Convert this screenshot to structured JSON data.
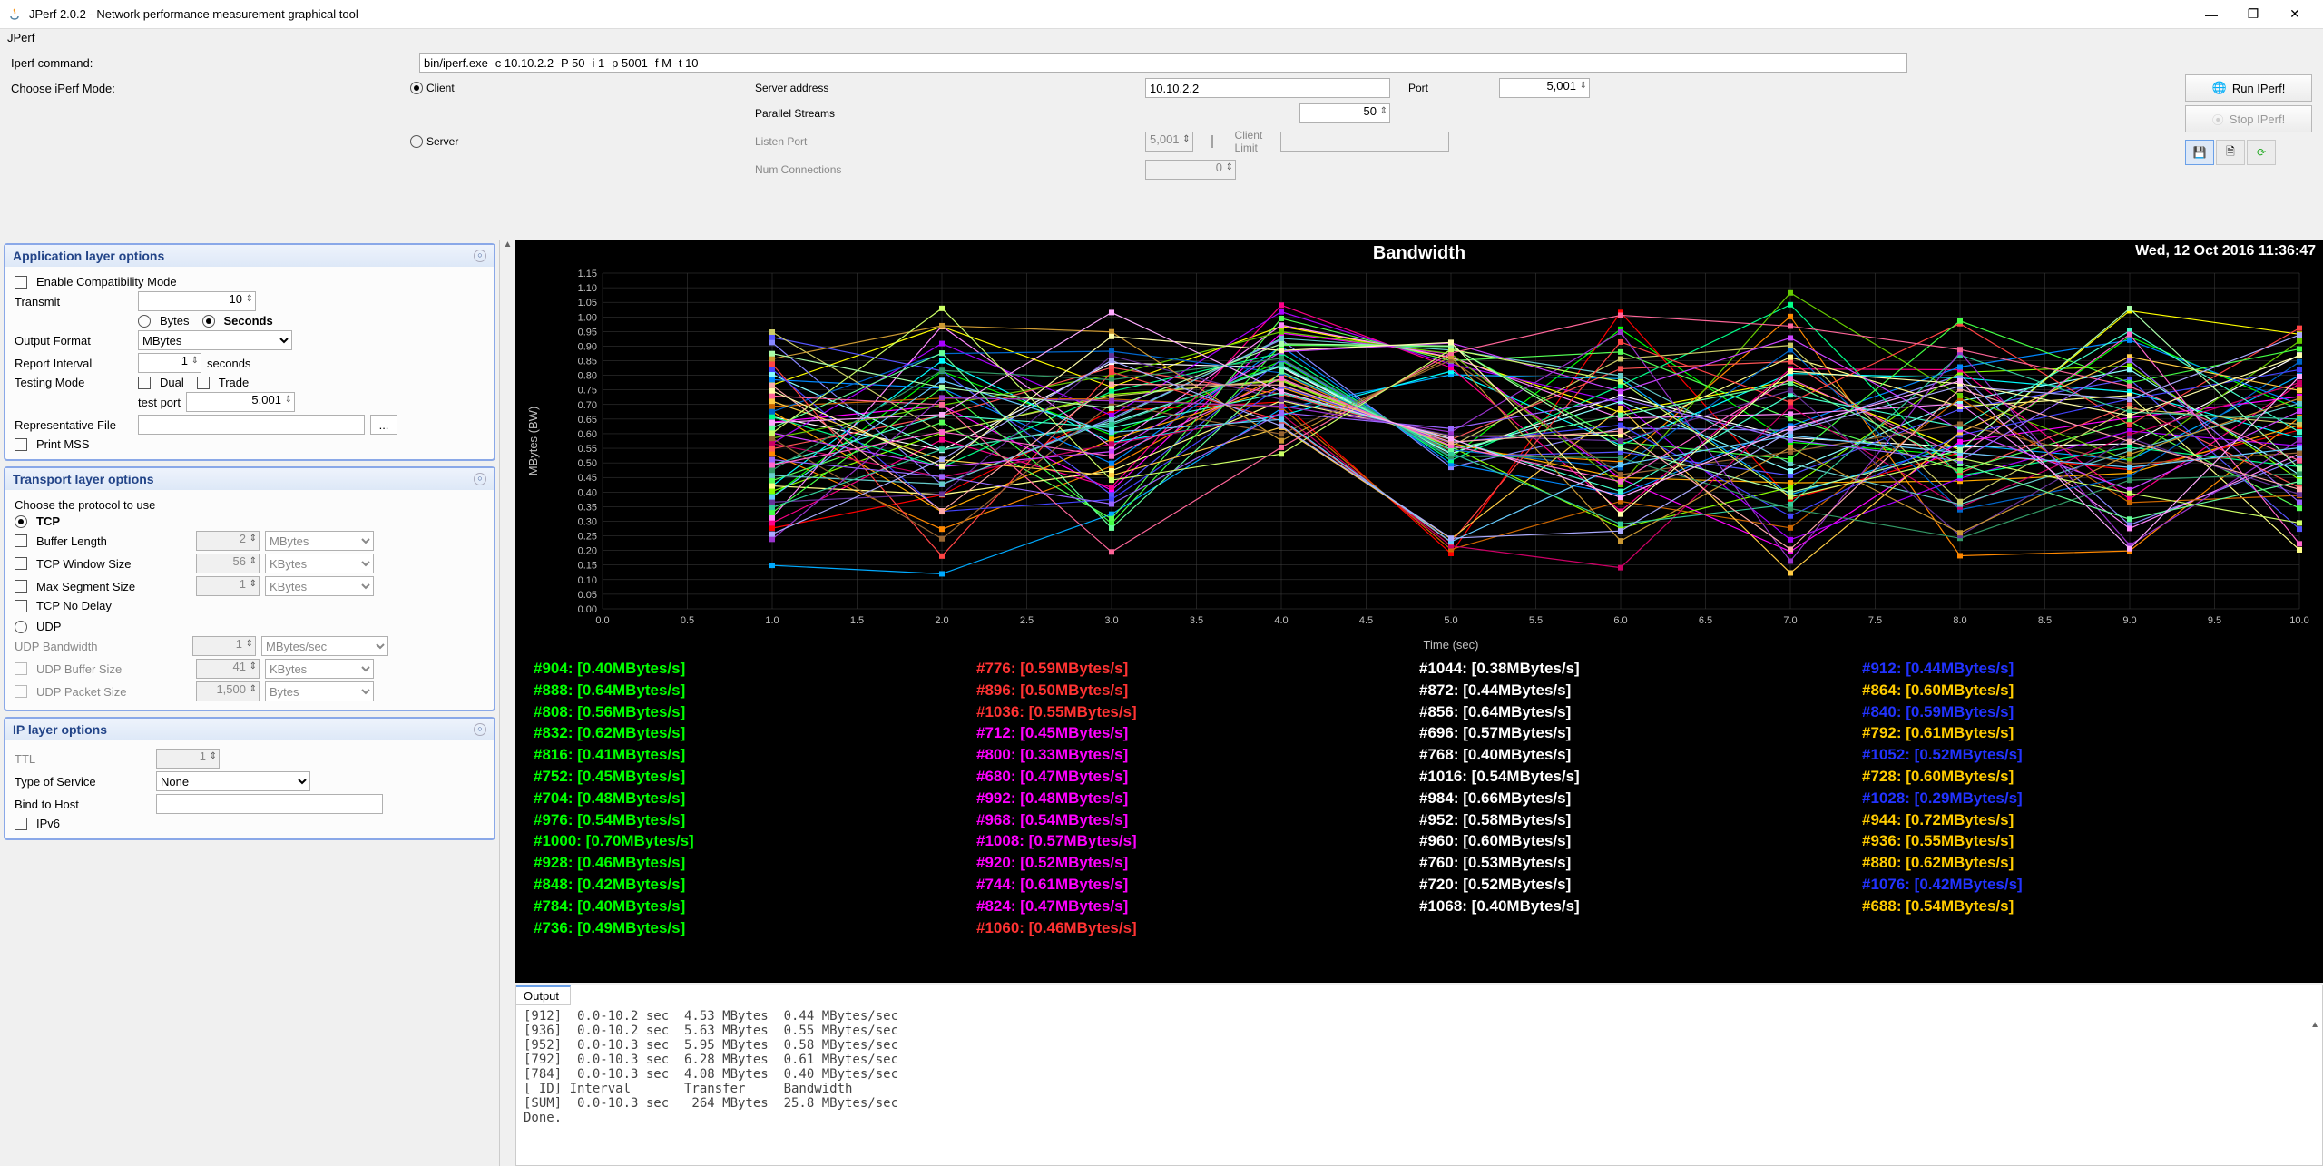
{
  "window": {
    "title": "JPerf 2.0.2 - Network performance measurement graphical tool",
    "menu_jperf": "JPerf"
  },
  "topform": {
    "iperf_cmd_label": "Iperf command:",
    "iperf_cmd_value": "bin/iperf.exe -c 10.10.2.2 -P 50 -i 1 -p 5001 -f M -t 10",
    "mode_label": "Choose iPerf Mode:",
    "client_label": "Client",
    "server_label": "Server",
    "server_addr_label": "Server address",
    "server_addr_value": "10.10.2.2",
    "port_label": "Port",
    "port_value": "5,001",
    "parallel_label": "Parallel Streams",
    "parallel_value": "50",
    "listen_port_label": "Listen Port",
    "listen_port_value": "5,001",
    "client_limit_label": "Client Limit",
    "numconn_label": "Num Connections",
    "numconn_value": "0"
  },
  "buttons": {
    "run": "Run IPerf!",
    "stop": "Stop IPerf!"
  },
  "panels": {
    "app": {
      "title": "Application layer options",
      "compat": "Enable Compatibility Mode",
      "transmit": "Transmit",
      "transmit_val": "10",
      "bytes": "Bytes",
      "seconds": "Seconds",
      "outfmt": "Output Format",
      "outfmt_val": "MBytes",
      "repint": "Report Interval",
      "repint_val": "1",
      "repint_unit": "seconds",
      "testmode": "Testing Mode",
      "dual": "Dual",
      "trade": "Trade",
      "testport": "test port",
      "testport_val": "5,001",
      "repfile": "Representative File",
      "browse": "...",
      "printmss": "Print MSS"
    },
    "transport": {
      "title": "Transport layer options",
      "choose": "Choose the protocol to use",
      "tcp": "TCP",
      "buflen": "Buffer Length",
      "buflen_val": "2",
      "buflen_unit": "MBytes",
      "winsize": "TCP Window Size",
      "winsize_val": "56",
      "winsize_unit": "KBytes",
      "maxseg": "Max Segment Size",
      "maxseg_val": "1",
      "maxseg_unit": "KBytes",
      "nodelay": "TCP No Delay",
      "udp": "UDP",
      "udpbw": "UDP Bandwidth",
      "udpbw_val": "1",
      "udpbw_unit": "MBytes/sec",
      "udpbuf": "UDP Buffer Size",
      "udpbuf_val": "41",
      "udpbuf_unit": "KBytes",
      "udppkt": "UDP Packet Size",
      "udppkt_val": "1,500",
      "udppkt_unit": "Bytes"
    },
    "ip": {
      "title": "IP layer options",
      "ttl": "TTL",
      "ttl_val": "1",
      "tos": "Type of Service",
      "tos_val": "None",
      "bind": "Bind to Host",
      "ipv6": "IPv6"
    }
  },
  "chart": {
    "title": "Bandwidth",
    "timestamp": "Wed, 12 Oct 2016 11:36:47",
    "ylabel": "MBytes (BW)",
    "xlabel": "Time (sec)",
    "yticks": [
      "0.00",
      "0.05",
      "0.10",
      "0.15",
      "0.20",
      "0.25",
      "0.30",
      "0.35",
      "0.40",
      "0.45",
      "0.50",
      "0.55",
      "0.60",
      "0.65",
      "0.70",
      "0.75",
      "0.80",
      "0.85",
      "0.90",
      "0.95",
      "1.00",
      "1.05",
      "1.10",
      "1.15"
    ],
    "xticks": [
      "0.0",
      "0.5",
      "1.0",
      "1.5",
      "2.0",
      "2.5",
      "3.0",
      "3.5",
      "4.0",
      "4.5",
      "5.0",
      "5.5",
      "6.0",
      "6.5",
      "7.0",
      "7.5",
      "8.0",
      "8.5",
      "9.0",
      "9.5",
      "10.0"
    ],
    "ylim": [
      0,
      1.15
    ],
    "xlim": [
      0,
      10
    ],
    "bg": "#000000",
    "grid_color": "#404040",
    "axis_color": "#c0c0c0",
    "label_fontsize": 12,
    "series_colors": [
      "#00ff00",
      "#ff0000",
      "#ffff00",
      "#ffffff",
      "#00aaff",
      "#ff00ff",
      "#ff8800",
      "#00ffff",
      "#8888ff",
      "#88ff00",
      "#ff0088",
      "#0088ff",
      "#ffaa00",
      "#aa00ff",
      "#00ff88",
      "#ff5555",
      "#55ff55",
      "#5555ff",
      "#ffff88",
      "#ff88ff",
      "#88ffff",
      "#cc6600",
      "#66cc00",
      "#0066cc",
      "#cc0066",
      "#66cccc",
      "#cccc66",
      "#ff4444",
      "#44ff44",
      "#4444ff",
      "#ffcc44",
      "#cc44ff",
      "#44ffcc",
      "#996633",
      "#339966",
      "#663399",
      "#cc9933",
      "#33cc99",
      "#9933cc",
      "#ff6699",
      "#66ff99",
      "#9966ff",
      "#ccff66",
      "#ff66cc",
      "#66ccff",
      "#aaffaa",
      "#ffaaaa",
      "#aaaaff",
      "#ffffaa",
      "#ffaaff"
    ]
  },
  "legend": [
    {
      "id": "#904:",
      "v": "[0.40MBytes/s]",
      "c": "#00ff00"
    },
    {
      "id": "#776:",
      "v": "[0.59MBytes/s]",
      "c": "#ff3333"
    },
    {
      "id": "#1044:",
      "v": "[0.38MBytes/s]",
      "c": "#ffffff"
    },
    {
      "id": "#912:",
      "v": "[0.44MBytes/s]",
      "c": "#2233ff"
    },
    {
      "id": "#888:",
      "v": "[0.64MBytes/s]",
      "c": "#00ff00"
    },
    {
      "id": "#896:",
      "v": "[0.50MBytes/s]",
      "c": "#ff3333"
    },
    {
      "id": "#872:",
      "v": "[0.44MBytes/s]",
      "c": "#ffffff"
    },
    {
      "id": "#864:",
      "v": "[0.60MBytes/s]",
      "c": "#ffcc00"
    },
    {
      "id": "#808:",
      "v": "[0.56MBytes/s]",
      "c": "#00ff00"
    },
    {
      "id": "#1036:",
      "v": "[0.55MBytes/s]",
      "c": "#ff3333"
    },
    {
      "id": "#856:",
      "v": "[0.64MBytes/s]",
      "c": "#ffffff"
    },
    {
      "id": "#840:",
      "v": "[0.59MBytes/s]",
      "c": "#2233ff"
    },
    {
      "id": "#832:",
      "v": "[0.62MBytes/s]",
      "c": "#00ff00"
    },
    {
      "id": "#712:",
      "v": "[0.45MBytes/s]",
      "c": "#ff00ff"
    },
    {
      "id": "#696:",
      "v": "[0.57MBytes/s]",
      "c": "#ffffff"
    },
    {
      "id": "#792:",
      "v": "[0.61MBytes/s]",
      "c": "#ffcc00"
    },
    {
      "id": "#816:",
      "v": "[0.41MBytes/s]",
      "c": "#00ff00"
    },
    {
      "id": "#800:",
      "v": "[0.33MBytes/s]",
      "c": "#ff00ff"
    },
    {
      "id": "#768:",
      "v": "[0.40MBytes/s]",
      "c": "#ffffff"
    },
    {
      "id": "#1052:",
      "v": "[0.52MBytes/s]",
      "c": "#2233ff"
    },
    {
      "id": "#752:",
      "v": "[0.45MBytes/s]",
      "c": "#00ff00"
    },
    {
      "id": "#680:",
      "v": "[0.47MBytes/s]",
      "c": "#ff00ff"
    },
    {
      "id": "#1016:",
      "v": "[0.54MBytes/s]",
      "c": "#ffffff"
    },
    {
      "id": "#728:",
      "v": "[0.60MBytes/s]",
      "c": "#ffcc00"
    },
    {
      "id": "#704:",
      "v": "[0.48MBytes/s]",
      "c": "#00ff00"
    },
    {
      "id": "#992:",
      "v": "[0.48MBytes/s]",
      "c": "#ff00ff"
    },
    {
      "id": "#984:",
      "v": "[0.66MBytes/s]",
      "c": "#ffffff"
    },
    {
      "id": "#1028:",
      "v": "[0.29MBytes/s]",
      "c": "#2233ff"
    },
    {
      "id": "#976:",
      "v": "[0.54MBytes/s]",
      "c": "#00ff00"
    },
    {
      "id": "#968:",
      "v": "[0.54MBytes/s]",
      "c": "#ff00ff"
    },
    {
      "id": "#952:",
      "v": "[0.58MBytes/s]",
      "c": "#ffffff"
    },
    {
      "id": "#944:",
      "v": "[0.72MBytes/s]",
      "c": "#ffcc00"
    },
    {
      "id": "#1000:",
      "v": "[0.70MBytes/s]",
      "c": "#00ff00"
    },
    {
      "id": "#1008:",
      "v": "[0.57MBytes/s]",
      "c": "#ff00ff"
    },
    {
      "id": "#960:",
      "v": "[0.60MBytes/s]",
      "c": "#ffffff"
    },
    {
      "id": "#936:",
      "v": "[0.55MBytes/s]",
      "c": "#ffcc00"
    },
    {
      "id": "#928:",
      "v": "[0.46MBytes/s]",
      "c": "#00ff00"
    },
    {
      "id": "#920:",
      "v": "[0.52MBytes/s]",
      "c": "#ff00ff"
    },
    {
      "id": "#760:",
      "v": "[0.53MBytes/s]",
      "c": "#ffffff"
    },
    {
      "id": "#880:",
      "v": "[0.62MBytes/s]",
      "c": "#ffcc00"
    },
    {
      "id": "#848:",
      "v": "[0.42MBytes/s]",
      "c": "#00ff00"
    },
    {
      "id": "#744:",
      "v": "[0.61MBytes/s]",
      "c": "#ff00ff"
    },
    {
      "id": "#720:",
      "v": "[0.52MBytes/s]",
      "c": "#ffffff"
    },
    {
      "id": "#1076:",
      "v": "[0.42MBytes/s]",
      "c": "#2233ff"
    },
    {
      "id": "#784:",
      "v": "[0.40MBytes/s]",
      "c": "#00ff00"
    },
    {
      "id": "#824:",
      "v": "[0.47MBytes/s]",
      "c": "#ff00ff"
    },
    {
      "id": "#1068:",
      "v": "[0.40MBytes/s]",
      "c": "#ffffff"
    },
    {
      "id": "#688:",
      "v": "[0.54MBytes/s]",
      "c": "#ffcc00"
    },
    {
      "id": "#736:",
      "v": "[0.49MBytes/s]",
      "c": "#00ff00"
    },
    {
      "id": "#1060:",
      "v": "[0.46MBytes/s]",
      "c": "#ff3333"
    }
  ],
  "output": {
    "tab": "Output",
    "lines": "[912]  0.0-10.2 sec  4.53 MBytes  0.44 MBytes/sec\n[936]  0.0-10.2 sec  5.63 MBytes  0.55 MBytes/sec\n[952]  0.0-10.3 sec  5.95 MBytes  0.58 MBytes/sec\n[792]  0.0-10.3 sec  6.28 MBytes  0.61 MBytes/sec\n[784]  0.0-10.3 sec  4.08 MBytes  0.40 MBytes/sec\n[ ID] Interval       Transfer     Bandwidth\n[SUM]  0.0-10.3 sec   264 MBytes  25.8 MBytes/sec\nDone."
  }
}
